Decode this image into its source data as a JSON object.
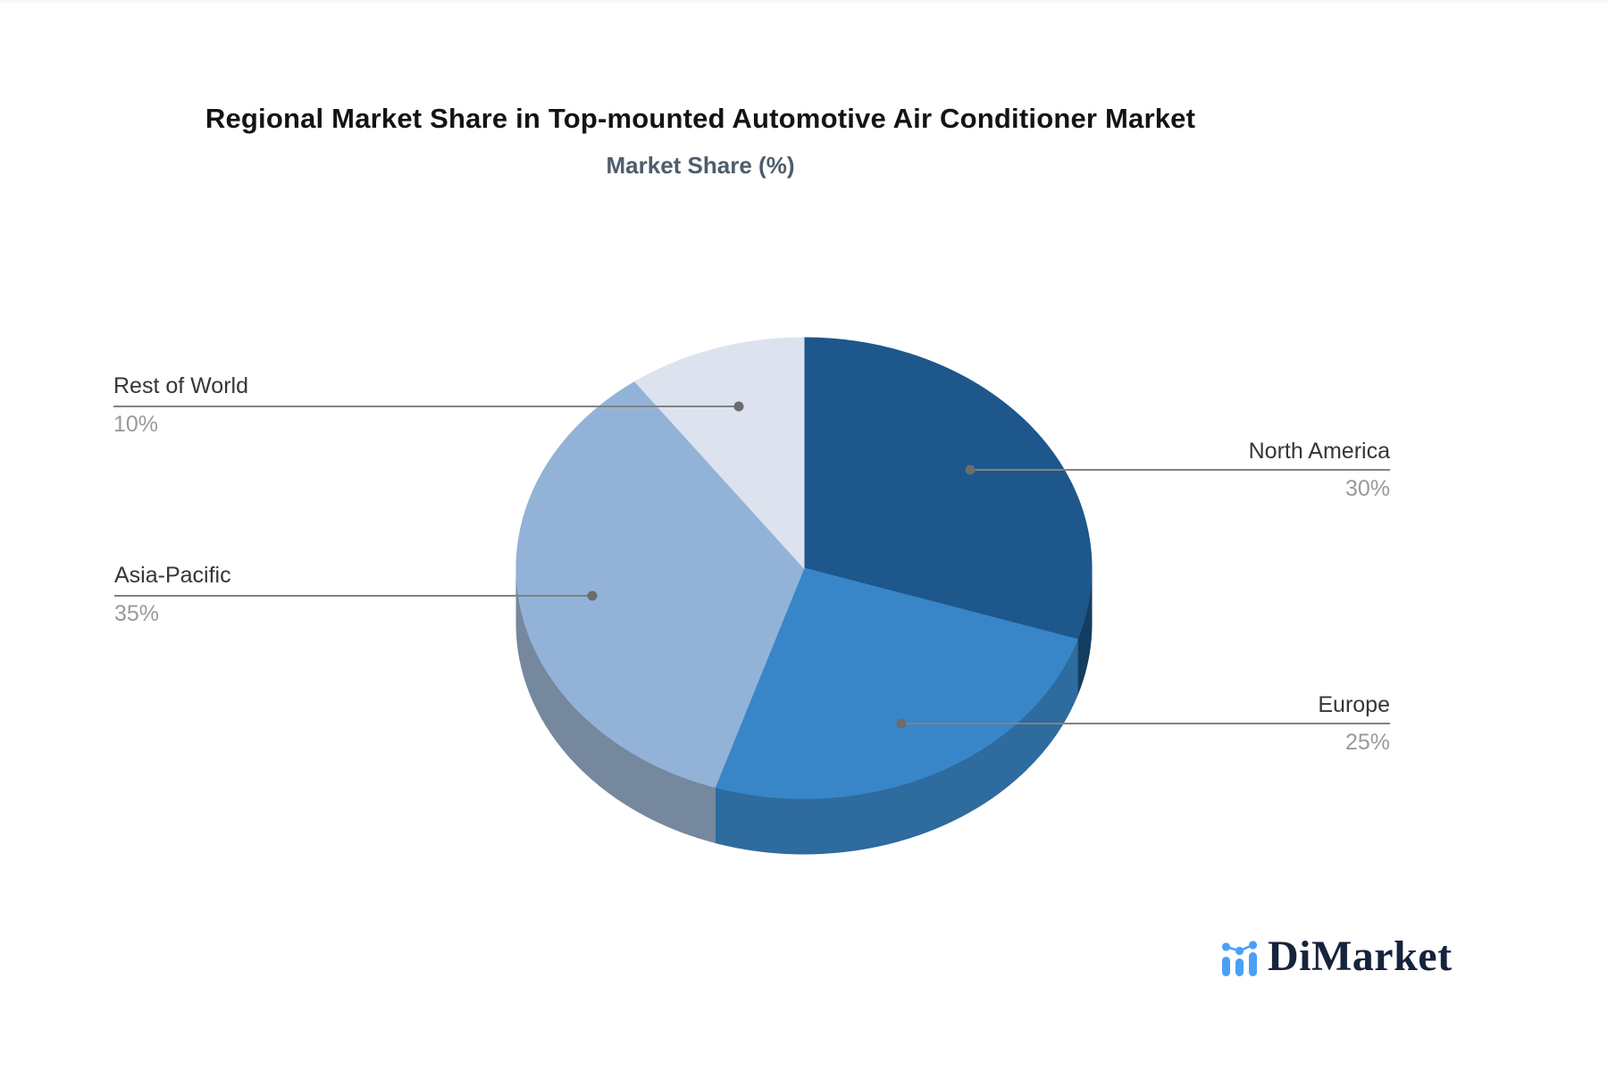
{
  "chart_data": {
    "type": "pie",
    "style": "3d",
    "title": "Regional Market Share in Top-mounted Automotive Air Conditioner Market",
    "subtitle": "Market Share (%)",
    "unit": "%",
    "start_angle_deg": 0,
    "direction": "clockwise",
    "total": 100,
    "slices": [
      {
        "label": "North America",
        "value": 30,
        "display": "30%",
        "color": "#1D578C",
        "side_color": "#153D60"
      },
      {
        "label": "Europe",
        "value": 25,
        "display": "25%",
        "color": "#3886C8",
        "side_color": "#2E6B9E"
      },
      {
        "label": "Asia-Pacific",
        "value": 35,
        "display": "35%",
        "color": "#92B3D7",
        "side_color": "#75889D"
      },
      {
        "label": "Rest of World",
        "value": 10,
        "display": "10%",
        "color": "#DCE3EE",
        "side_color": "#C5CEDD"
      }
    ],
    "legend_position": "callout-labels",
    "callout_line_color": "#828282",
    "callout_dot_color": "#6c6c6c",
    "label_color": "#363636",
    "value_color": "#9a9a9a"
  },
  "branding": {
    "logo_text": "DiMarket",
    "logo_text_color": "#16233d",
    "icon": "bar-chart-line-icon",
    "icon_color": "#4BA0F5"
  }
}
